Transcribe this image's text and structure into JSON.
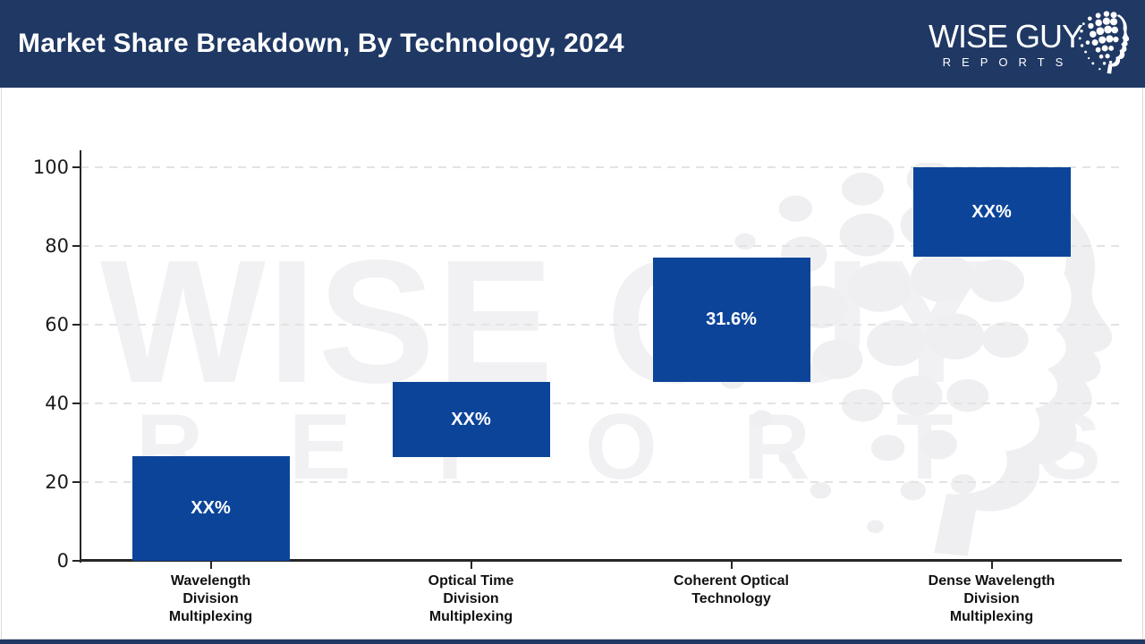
{
  "header": {
    "title": "Market Share Breakdown, By Technology, 2024",
    "background_color": "#1F3864",
    "logo": {
      "wordmark": "WISE GUY",
      "subtext": "REPORTS",
      "icon": "dot-face-profile-icon"
    }
  },
  "watermark": {
    "wordmark": "WISE GUY",
    "subtext": "REPORTS",
    "icon": "dot-face-profile-icon"
  },
  "chart_data": {
    "type": "bar",
    "variant": "waterfall",
    "title": "Market Share Breakdown, By Technology, 2024",
    "categories": [
      "Wavelength\nDivision\nMultiplexing",
      "Optical Time\nDivision\nMultiplexing",
      "Coherent Optical\nTechnology",
      "Dense Wavelength\nDivision\nMultiplexing"
    ],
    "segments": [
      {
        "start": 0,
        "end": 26.5,
        "value_label": "XX%"
      },
      {
        "start": 26.3,
        "end": 45.5,
        "value_label": "XX%"
      },
      {
        "start": 45.5,
        "end": 77.1,
        "value_label": "31.6%"
      },
      {
        "start": 77.2,
        "end": 100,
        "value_label": "XX%"
      }
    ],
    "bar_color": "#0C4499",
    "bar_label_color": "#FFFFFF",
    "ylim": [
      0,
      100
    ],
    "yticks": [
      0,
      20,
      40,
      60,
      80,
      100
    ],
    "grid": "horizontal-dashed",
    "xlabel": "",
    "ylabel": "",
    "legend": "none"
  }
}
